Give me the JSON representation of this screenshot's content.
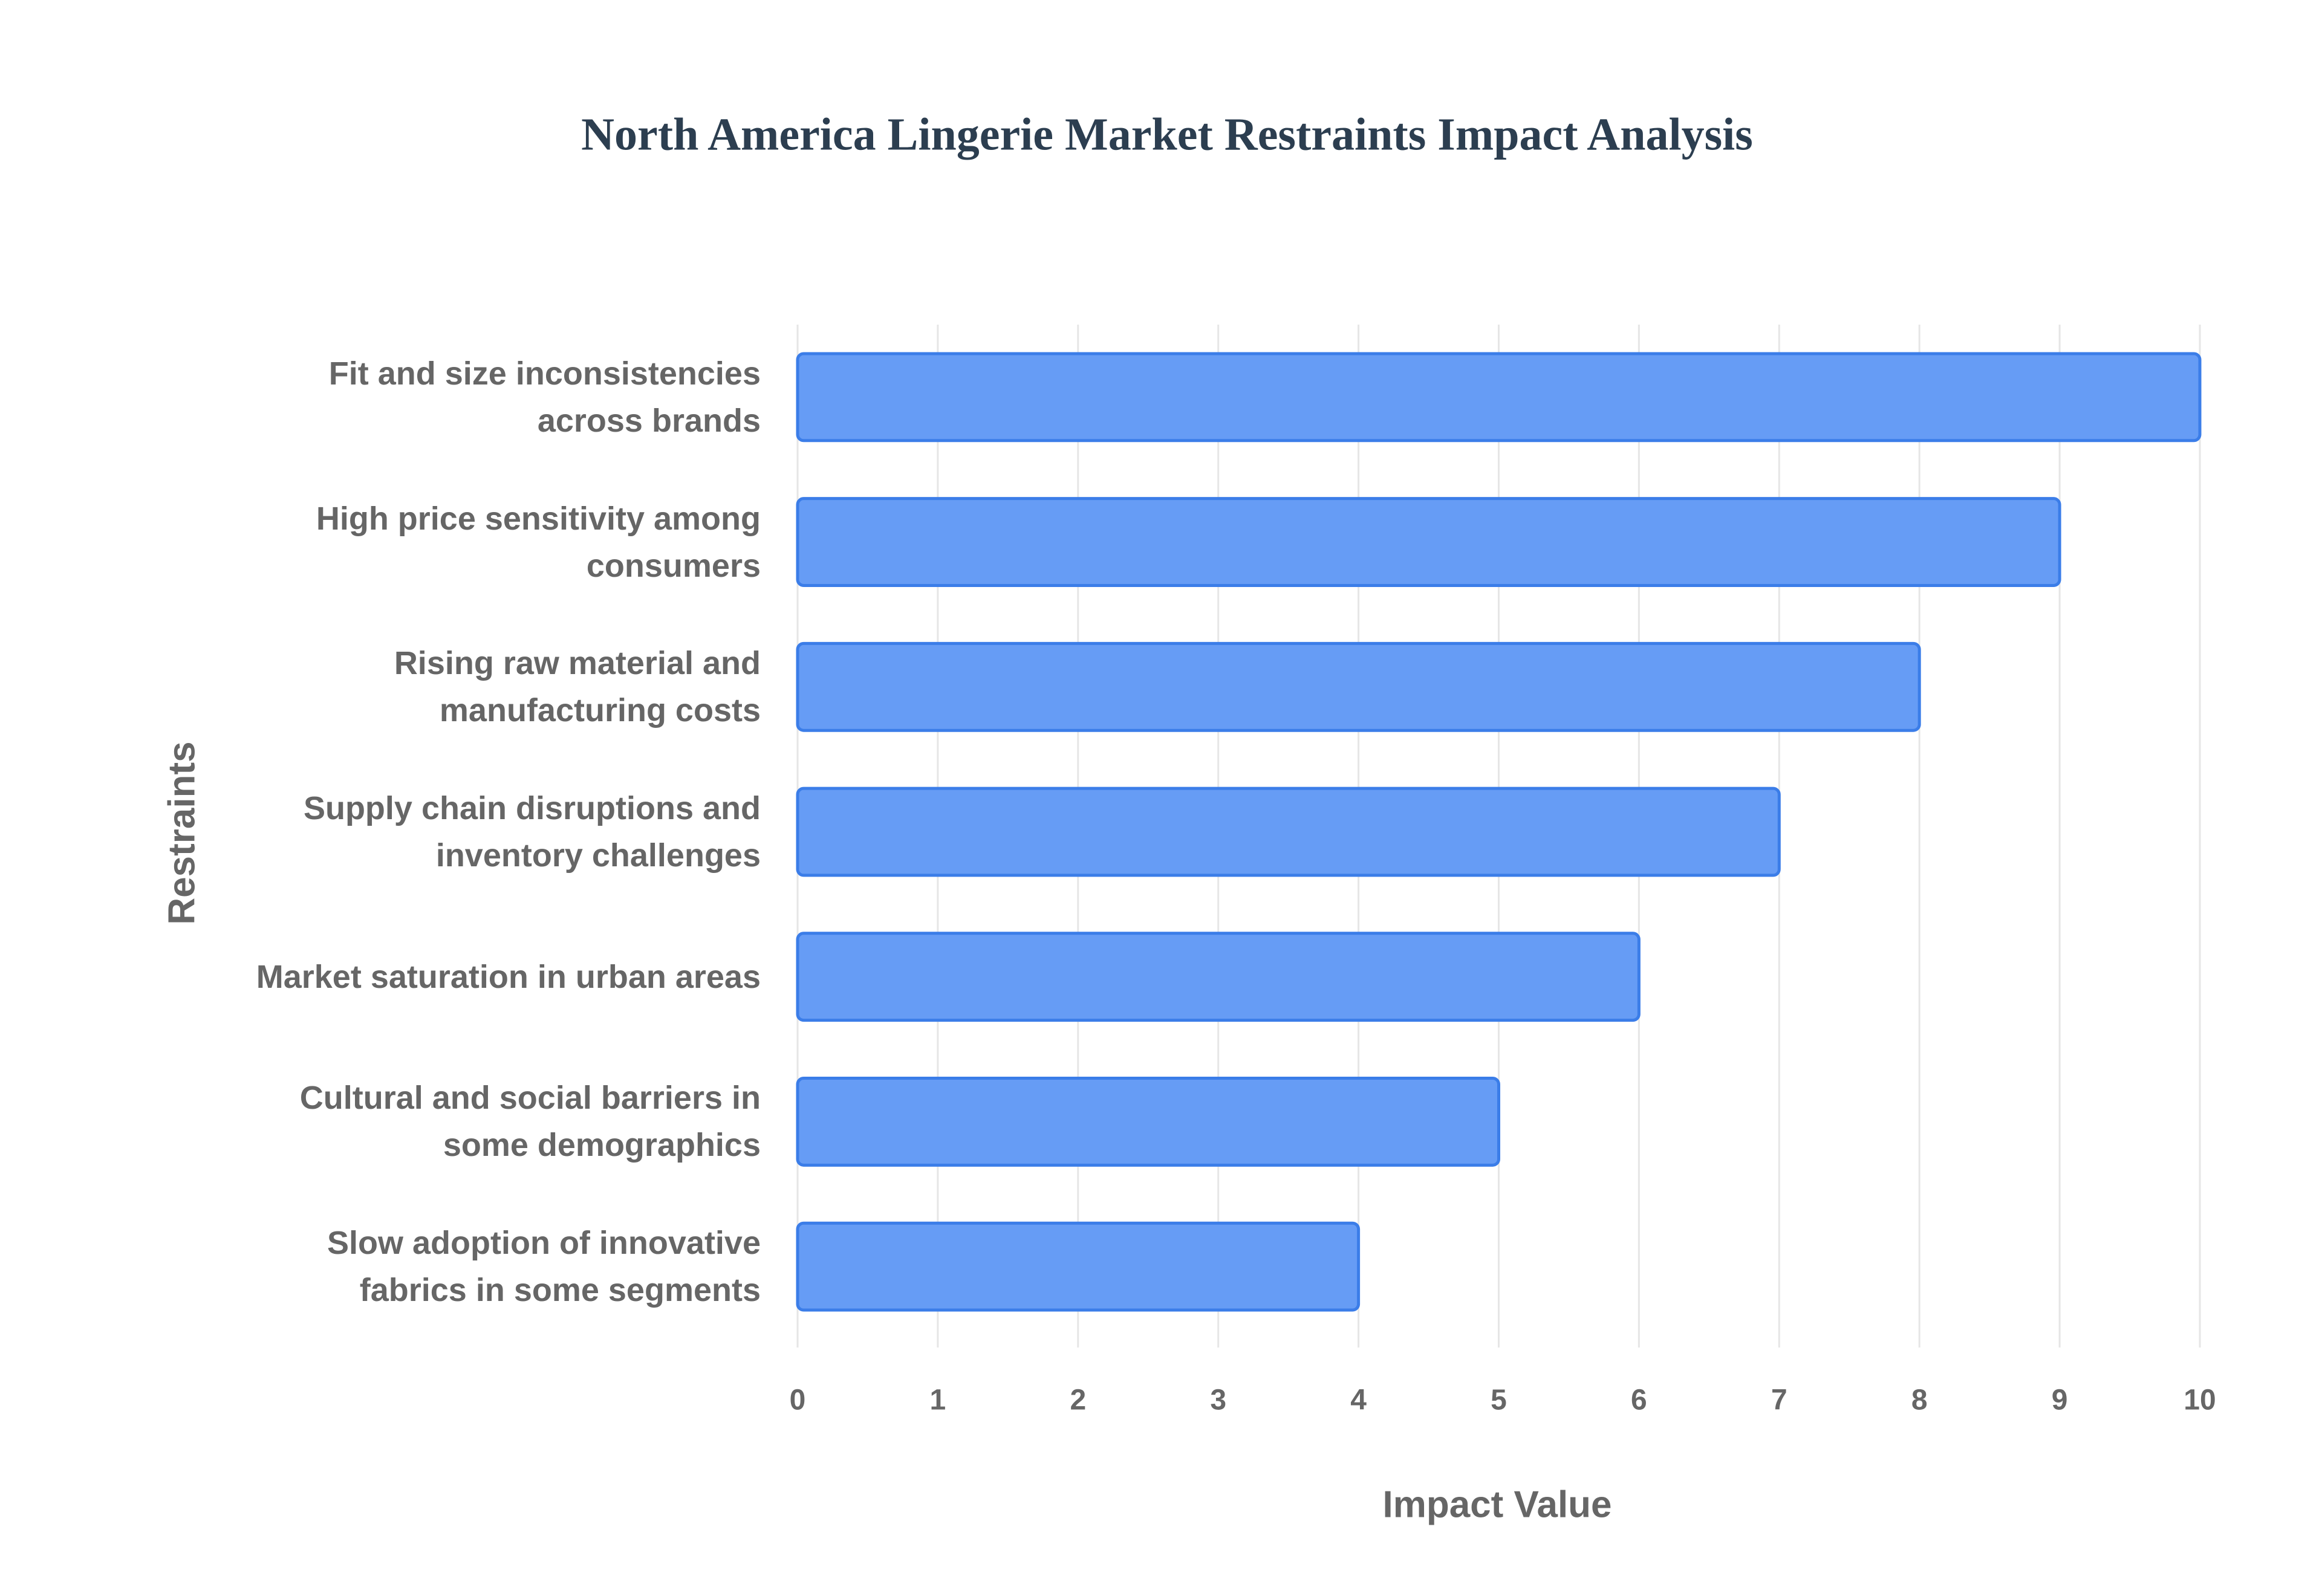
{
  "chart_data": {
    "type": "bar",
    "orientation": "horizontal",
    "title": "North America Lingerie Market Restraints Impact Analysis",
    "categories": [
      "Fit and size inconsistencies across brands",
      "High price sensitivity among consumers",
      "Rising raw material and manufacturing costs",
      "Supply chain disruptions and inventory challenges",
      "Market saturation in urban areas",
      "Cultural and social barriers in some demographics",
      "Slow adoption of innovative fabrics in some segments"
    ],
    "values": [
      10,
      9,
      8,
      7,
      6,
      5,
      4
    ],
    "color": "#6199f5",
    "edge_color": "#3b7de8",
    "x_label": "Impact Value",
    "y_label": "Restraints",
    "xlim": [
      0,
      10
    ],
    "xticks": [
      0,
      1,
      2,
      3,
      4,
      5,
      6,
      7,
      8,
      9,
      10
    ],
    "grid": true
  }
}
